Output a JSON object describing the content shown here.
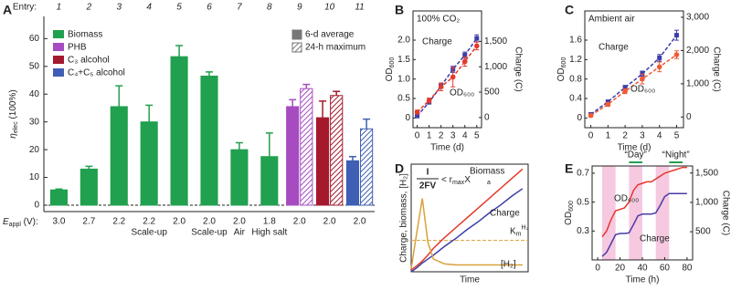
{
  "chart_data": [
    {
      "panel": "A",
      "type": "bar",
      "entry_label": "Entry:",
      "categories": [
        "1",
        "2",
        "3",
        "4",
        "5",
        "6",
        "7",
        "8",
        "9",
        "10",
        "11"
      ],
      "voltages": [
        "3.0",
        "2.7",
        "2.2",
        "2.2",
        "2.0",
        "2.0",
        "2.0",
        "1.8",
        "2.0",
        "2.0",
        "2.0"
      ],
      "conditions": [
        null,
        null,
        null,
        "Scale-up",
        null,
        "Scale-up",
        "Air",
        "High salt",
        null,
        null,
        null
      ],
      "y_label": "η",
      "y_label_sub": "elec",
      "y_label_unit": " (100%)",
      "x_label": "E",
      "x_label_sub": "appl",
      "x_label_unit": " (V):",
      "ylim": [
        -2.3,
        68
      ],
      "yticks": [
        0,
        10,
        20,
        30,
        40,
        50,
        60
      ],
      "zero_line": true,
      "style_legend": [
        "6-d average",
        "24-h maximum"
      ],
      "series": [
        {
          "name": "Biomass",
          "color": "#21a04f",
          "values": [
            5.5,
            13,
            35.5,
            30,
            53.5,
            46.5,
            20,
            17.5,
            null,
            null,
            null
          ],
          "errors": [
            0.3,
            1,
            7.5,
            6,
            4,
            1.5,
            2.5,
            8.5,
            null,
            null,
            null
          ],
          "max_values": [
            null,
            null,
            null,
            null,
            null,
            null,
            null,
            null,
            null,
            null,
            null
          ],
          "max_errors": [
            null,
            null,
            null,
            null,
            null,
            null,
            null,
            null,
            null,
            null,
            null
          ]
        },
        {
          "name": "PHB",
          "color": "#a64cc0",
          "values": [
            null,
            null,
            null,
            null,
            null,
            null,
            null,
            null,
            35.5,
            null,
            null
          ],
          "errors": [
            null,
            null,
            null,
            null,
            null,
            null,
            null,
            null,
            2.5,
            null,
            null
          ],
          "max_values": [
            null,
            null,
            null,
            null,
            null,
            null,
            null,
            null,
            42,
            null,
            null
          ],
          "max_errors": [
            null,
            null,
            null,
            null,
            null,
            null,
            null,
            null,
            1.5,
            null,
            null
          ]
        },
        {
          "name": "C₃ alcohol",
          "color": "#a5192d",
          "values": [
            null,
            null,
            null,
            null,
            null,
            null,
            null,
            null,
            null,
            31.5,
            null
          ],
          "errors": [
            null,
            null,
            null,
            null,
            null,
            null,
            null,
            null,
            null,
            6,
            null
          ],
          "max_values": [
            null,
            null,
            null,
            null,
            null,
            null,
            null,
            null,
            null,
            39.5,
            null
          ],
          "max_errors": [
            null,
            null,
            null,
            null,
            null,
            null,
            null,
            null,
            null,
            1.5,
            null
          ]
        },
        {
          "name": "C₄+C₅ alcohol",
          "color": "#3f5fb5",
          "values": [
            null,
            null,
            null,
            null,
            null,
            null,
            null,
            null,
            null,
            null,
            16
          ],
          "errors": [
            null,
            null,
            null,
            null,
            null,
            null,
            null,
            null,
            null,
            null,
            1.5
          ],
          "max_values": [
            null,
            null,
            null,
            null,
            null,
            null,
            null,
            null,
            null,
            null,
            27.5
          ],
          "max_errors": [
            null,
            null,
            null,
            null,
            null,
            null,
            null,
            null,
            null,
            null,
            3.5
          ]
        }
      ]
    },
    {
      "panel": "B",
      "type": "line",
      "annotation": "100% CO₂",
      "x": [
        0,
        1,
        2,
        3,
        4,
        5
      ],
      "xlim": [
        -0.35,
        5.4
      ],
      "xticks": [
        0,
        1,
        2,
        3,
        4,
        5
      ],
      "x_label": "Time (d)",
      "y_label": "OD",
      "y_label_sub": "600",
      "y2_label": "Charge (C)",
      "ylim": [
        -0.25,
        2.75
      ],
      "yticks": [
        0,
        0.5,
        {
          "value": 1,
          "label": "1.0"
        },
        1.5,
        {
          "value": 2,
          "label": "2.0"
        }
      ],
      "y2lim": [
        -200,
        2100
      ],
      "y2ticks": [
        0,
        500,
        {
          "value": 1000,
          "label": "1,000"
        },
        {
          "value": 1500,
          "label": "1,500"
        }
      ],
      "series": [
        {
          "name": "Charge",
          "color": "#3d3ea8",
          "axis": "y2",
          "marker": "square",
          "line_style": "dashed",
          "values": [
            30,
            300,
            620,
            950,
            1230,
            1560
          ],
          "errors": [
            20,
            30,
            40,
            60,
            60,
            70
          ]
        },
        {
          "name": "OD₆₀₀",
          "color": "#e43a2c",
          "marker": "circle",
          "line_style": "dashed",
          "values": [
            0.15,
            0.45,
            0.8,
            1.05,
            1.45,
            1.85
          ],
          "errors": [
            0.05,
            0.06,
            0.1,
            0.25,
            0.12,
            0.1
          ]
        }
      ]
    },
    {
      "panel": "C",
      "type": "line",
      "annotation": "Ambient air",
      "x": [
        0,
        1,
        2,
        3,
        4,
        5
      ],
      "xlim": [
        -0.35,
        5.4
      ],
      "xticks": [
        0,
        1,
        2,
        3,
        4,
        5
      ],
      "x_label": "Time (d)",
      "y_label": "OD",
      "y_label_sub": "600",
      "y2_label": "Charge (C)",
      "ylim": [
        -0.2,
        2.2
      ],
      "yticks": [
        0,
        0.4,
        0.8,
        1.2,
        1.6
      ],
      "y2lim": [
        -320,
        3190
      ],
      "y2ticks": [
        0,
        {
          "value": 1000,
          "label": "1,000"
        },
        {
          "value": 2000,
          "label": "2,000"
        },
        {
          "value": 3000,
          "label": "3,000"
        }
      ],
      "series": [
        {
          "name": "Charge",
          "color": "#3d3ea8",
          "axis": "y2",
          "marker": "square",
          "line_style": "dashed",
          "values": [
            80,
            460,
            890,
            1300,
            1780,
            2460
          ],
          "errors": [
            30,
            40,
            60,
            80,
            100,
            150
          ]
        },
        {
          "name": "OD₆₀₀",
          "color": "#f05a35",
          "marker": "circle",
          "line_style": "dashed",
          "values": [
            0.05,
            0.28,
            0.55,
            0.8,
            1.05,
            1.3
          ],
          "errors": [
            0.03,
            0.04,
            0.05,
            0.1,
            0.1,
            0.08
          ]
        }
      ]
    },
    {
      "panel": "D",
      "type": "line",
      "formula": {
        "numerator": "I",
        "denominator": "2FV",
        "relation": "< r",
        "rate_sub": "max",
        "biomass": "X",
        "biomass_sub": "a"
      },
      "x": [
        0,
        0.5,
        1,
        1.5,
        2,
        3,
        4,
        5,
        6,
        7,
        8,
        9,
        10
      ],
      "xlim": [
        0,
        10.5
      ],
      "ylim": [
        0,
        11
      ],
      "x_label": "Time",
      "y_label": "Charge, biomass, [H₂]",
      "km": 3.2,
      "km_color": "#d9a13b",
      "km_label": "K",
      "km_sub": "m",
      "km_sup": "H₂",
      "series": [
        {
          "name": "Biomass",
          "color": "#e43a2c",
          "values": [
            0.2,
            0.6,
            1.1,
            1.7,
            2.4,
            3.5,
            4.5,
            5.5,
            6.5,
            7.5,
            8.5,
            9.5,
            10.5
          ]
        },
        {
          "name": "Charge",
          "color": "#3d3ea8",
          "values": [
            0,
            0.4,
            0.9,
            1.3,
            1.7,
            2.6,
            3.4,
            4.3,
            5.1,
            6,
            6.8,
            7.7,
            8.5
          ]
        },
        {
          "name": "[H₂]",
          "color": "#d9a13b",
          "values": [
            0.3,
            4,
            7.5,
            3,
            1.3,
            0.8,
            0.7,
            0.7,
            0.7,
            0.7,
            0.7,
            0.7,
            0.7
          ]
        }
      ]
    },
    {
      "panel": "E",
      "type": "line",
      "x": [
        0,
        4,
        8,
        12,
        16,
        20,
        24,
        28,
        32,
        36,
        40,
        44,
        48,
        52,
        56,
        60,
        64,
        68,
        72,
        76,
        80
      ],
      "xlim": [
        -5,
        85
      ],
      "xticks": [
        0,
        20,
        40,
        60,
        80
      ],
      "x_label": "Time (h)",
      "y_label": "OD",
      "y_label_sub": "600",
      "y2_label": "Charge (C)",
      "ylim": [
        0.1,
        0.75
      ],
      "yticks": [
        0.3,
        0.5,
        0.7
      ],
      "y2lim": [
        20,
        1620
      ],
      "y2ticks": [
        500,
        {
          "value": 1000,
          "label": "1,000"
        },
        {
          "value": 1500,
          "label": "1,500"
        }
      ],
      "shaded": [
        [
          4,
          16
        ],
        [
          28,
          40
        ],
        [
          52,
          64
        ]
      ],
      "shade_color": "#f6c9e0",
      "day_label": "“Day”",
      "day_span": [
        28,
        40
      ],
      "night_label": "“Night”",
      "night_span": [
        64,
        76
      ],
      "span_color": "#21a04f",
      "series": [
        {
          "name": "OD₆₀₀",
          "color": "#e8352b",
          "values": [
            null,
            0.26,
            0.3,
            0.38,
            0.44,
            0.45,
            0.46,
            0.5,
            0.58,
            0.62,
            0.63,
            0.64,
            0.64,
            0.66,
            0.68,
            0.7,
            0.71,
            0.72,
            0.73,
            0.74,
            0.74
          ]
        },
        {
          "name": "Charge",
          "color": "#4b3ca6",
          "axis": "y2",
          "values": [
            null,
            80,
            150,
            300,
            450,
            470,
            470,
            480,
            620,
            770,
            800,
            800,
            800,
            820,
            950,
            1100,
            1150,
            1150,
            1150,
            1150,
            1150
          ]
        }
      ]
    }
  ]
}
